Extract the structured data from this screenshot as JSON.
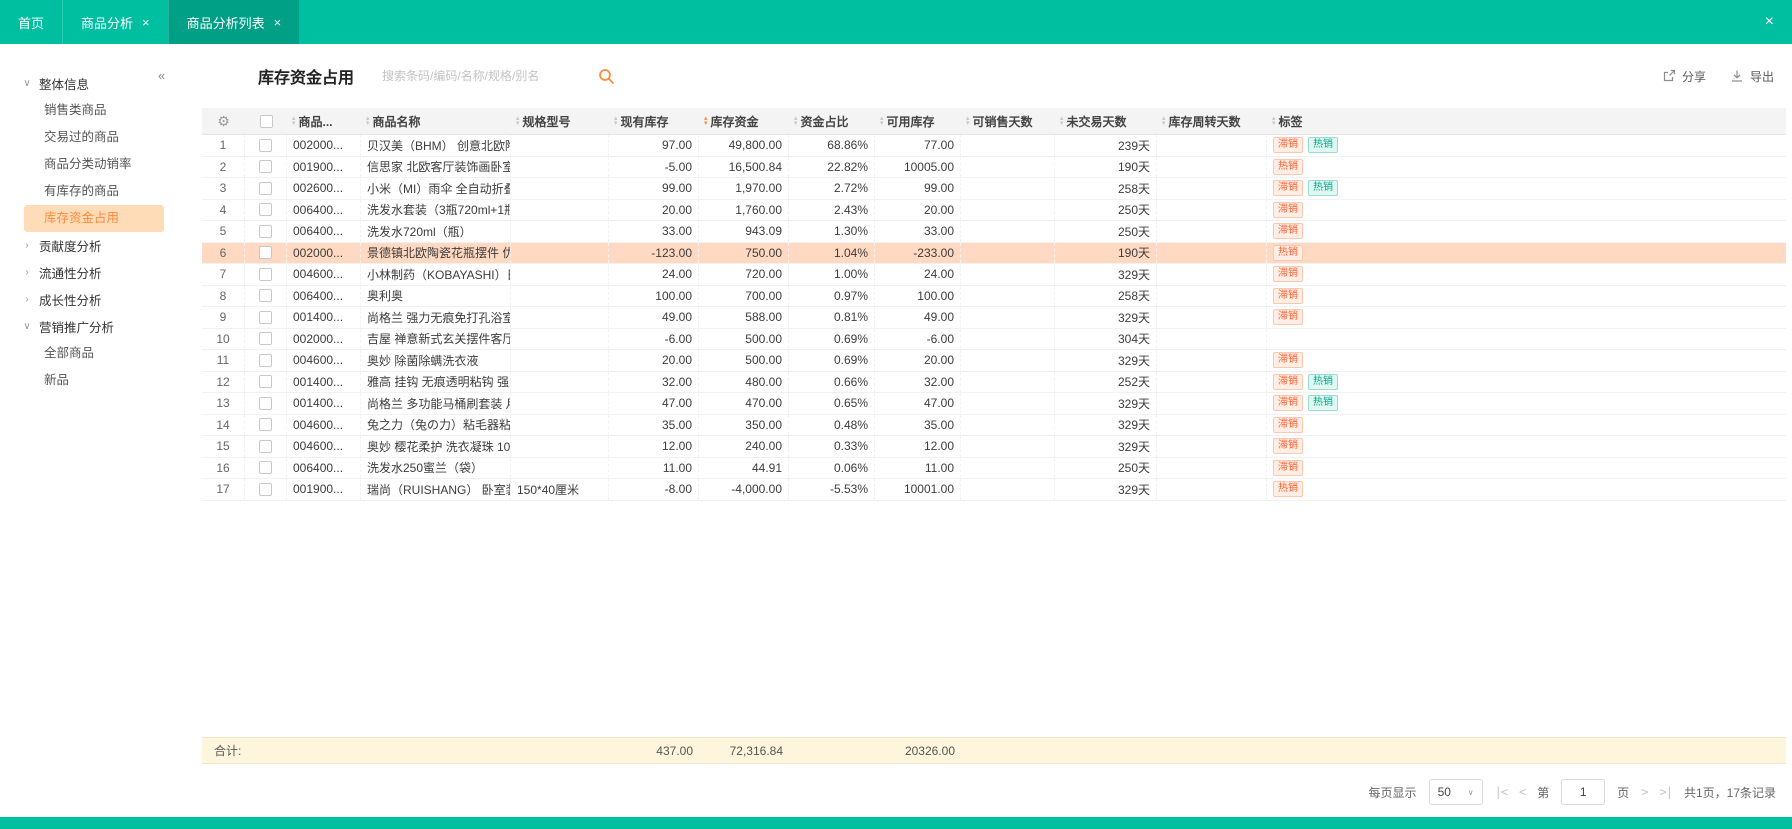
{
  "topbar": {
    "tabs": [
      {
        "label": "首页",
        "closable": false,
        "active": false
      },
      {
        "label": "商品分析",
        "closable": true,
        "active": false
      },
      {
        "label": "商品分析列表",
        "closable": true,
        "active": true
      }
    ],
    "close_icon": "×",
    "close_all_icon": "×"
  },
  "sidebar": {
    "collapse_icon": "«",
    "chevron_down_icon": "∨",
    "chevron_right_icon": "›",
    "groups": [
      {
        "label": "整体信息",
        "expanded": true,
        "selected": "库存资金占用",
        "children": [
          "销售类商品",
          "交易过的商品",
          "商品分类动销率",
          "有库存的商品",
          "库存资金占用"
        ]
      },
      {
        "label": "贡献度分析",
        "expanded": false,
        "selected": "",
        "children": []
      },
      {
        "label": "流通性分析",
        "expanded": false,
        "selected": "",
        "children": []
      },
      {
        "label": "成长性分析",
        "expanded": false,
        "selected": "",
        "children": []
      },
      {
        "label": "营销推广分析",
        "expanded": true,
        "selected": "",
        "children": [
          "全部商品",
          "新品"
        ]
      }
    ]
  },
  "toolbar": {
    "title": "库存资金占用",
    "search_placeholder": "搜索条码/编码/名称/规格/别名",
    "share_label": "分享",
    "export_label": "导出"
  },
  "table": {
    "settings_icon": "⚙",
    "sort_asc_icon": "▴",
    "sort_desc_icon": "▾",
    "columns": [
      {
        "label": "商品...",
        "key": "code",
        "sorted": false
      },
      {
        "label": "商品名称",
        "key": "name",
        "sorted": false
      },
      {
        "label": "规格型号",
        "key": "spec",
        "sorted": false
      },
      {
        "label": "现有库存",
        "key": "stock",
        "sorted": false
      },
      {
        "label": "库存资金",
        "key": "fund",
        "sorted": true
      },
      {
        "label": "资金占比",
        "key": "ratio",
        "sorted": false
      },
      {
        "label": "可用库存",
        "key": "available",
        "sorted": false
      },
      {
        "label": "可销售天数",
        "key": "sell_days",
        "sorted": false
      },
      {
        "label": "未交易天数",
        "key": "no_trade_days",
        "sorted": false
      },
      {
        "label": "库存周转天数",
        "key": "turnover_days",
        "sorted": false
      },
      {
        "label": "标签",
        "key": "tags",
        "sorted": false
      }
    ],
    "rows": [
      {
        "index": "1",
        "code": "002000...",
        "name": "贝汉美（BHM） 创意北欧陶",
        "spec": "",
        "stock": "97.00",
        "fund": "49,800.00",
        "ratio": "68.86%",
        "available": "77.00",
        "sell_days": "",
        "no_trade_days": "239天",
        "turnover_days": "",
        "highlighted": false,
        "tags": [
          {
            "label": "滞销",
            "color": "orange"
          },
          {
            "label": "热销",
            "color": "teal"
          }
        ]
      },
      {
        "index": "2",
        "code": "001900...",
        "name": "信思家 北欧客厅装饰画卧室",
        "spec": "",
        "stock": "-5.00",
        "fund": "16,500.84",
        "ratio": "22.82%",
        "available": "10005.00",
        "sell_days": "",
        "no_trade_days": "190天",
        "turnover_days": "",
        "highlighted": false,
        "tags": [
          {
            "label": "热销",
            "color": "orange"
          }
        ]
      },
      {
        "index": "3",
        "code": "002600...",
        "name": "小米（MI）雨伞 全自动折叠",
        "spec": "",
        "stock": "99.00",
        "fund": "1,970.00",
        "ratio": "2.72%",
        "available": "99.00",
        "sell_days": "",
        "no_trade_days": "258天",
        "turnover_days": "",
        "highlighted": false,
        "tags": [
          {
            "label": "滞销",
            "color": "orange"
          },
          {
            "label": "热销",
            "color": "teal"
          }
        ]
      },
      {
        "index": "4",
        "code": "006400...",
        "name": "洗发水套装（3瓶720ml+1瓶",
        "spec": "",
        "stock": "20.00",
        "fund": "1,760.00",
        "ratio": "2.43%",
        "available": "20.00",
        "sell_days": "",
        "no_trade_days": "250天",
        "turnover_days": "",
        "highlighted": false,
        "tags": [
          {
            "label": "滞销",
            "color": "orange"
          }
        ]
      },
      {
        "index": "5",
        "code": "006400...",
        "name": "洗发水720ml（瓶）",
        "spec": "",
        "stock": "33.00",
        "fund": "943.09",
        "ratio": "1.30%",
        "available": "33.00",
        "sell_days": "",
        "no_trade_days": "250天",
        "turnover_days": "",
        "highlighted": false,
        "tags": [
          {
            "label": "滞销",
            "color": "orange"
          }
        ]
      },
      {
        "index": "6",
        "code": "002000...",
        "name": "景德镇北欧陶瓷花瓶摆件 优",
        "spec": "",
        "stock": "-123.00",
        "fund": "750.00",
        "ratio": "1.04%",
        "available": "-233.00",
        "sell_days": "",
        "no_trade_days": "190天",
        "turnover_days": "",
        "highlighted": true,
        "tags": [
          {
            "label": "热销",
            "color": "orange"
          }
        ]
      },
      {
        "index": "7",
        "code": "004600...",
        "name": "小林制药（KOBAYASHI）日",
        "spec": "",
        "stock": "24.00",
        "fund": "720.00",
        "ratio": "1.00%",
        "available": "24.00",
        "sell_days": "",
        "no_trade_days": "329天",
        "turnover_days": "",
        "highlighted": false,
        "tags": [
          {
            "label": "滞销",
            "color": "orange"
          }
        ]
      },
      {
        "index": "8",
        "code": "006400...",
        "name": "奥利奥",
        "spec": "",
        "stock": "100.00",
        "fund": "700.00",
        "ratio": "0.97%",
        "available": "100.00",
        "sell_days": "",
        "no_trade_days": "258天",
        "turnover_days": "",
        "highlighted": false,
        "tags": [
          {
            "label": "滞销",
            "color": "orange"
          }
        ]
      },
      {
        "index": "9",
        "code": "001400...",
        "name": "尚格兰 强力无痕免打孔浴室",
        "spec": "",
        "stock": "49.00",
        "fund": "588.00",
        "ratio": "0.81%",
        "available": "49.00",
        "sell_days": "",
        "no_trade_days": "329天",
        "turnover_days": "",
        "highlighted": false,
        "tags": [
          {
            "label": "滞销",
            "color": "orange"
          }
        ]
      },
      {
        "index": "10",
        "code": "002000...",
        "name": "吉屋 禅意新式玄关摆件客厅",
        "spec": "",
        "stock": "-6.00",
        "fund": "500.00",
        "ratio": "0.69%",
        "available": "-6.00",
        "sell_days": "",
        "no_trade_days": "304天",
        "turnover_days": "",
        "highlighted": false,
        "tags": []
      },
      {
        "index": "11",
        "code": "004600...",
        "name": "奥妙 除菌除螨洗衣液",
        "spec": "",
        "stock": "20.00",
        "fund": "500.00",
        "ratio": "0.69%",
        "available": "20.00",
        "sell_days": "",
        "no_trade_days": "329天",
        "turnover_days": "",
        "highlighted": false,
        "tags": [
          {
            "label": "滞销",
            "color": "orange"
          }
        ]
      },
      {
        "index": "12",
        "code": "001400...",
        "name": "雅高 挂钩 无痕透明粘钩 强力",
        "spec": "",
        "stock": "32.00",
        "fund": "480.00",
        "ratio": "0.66%",
        "available": "32.00",
        "sell_days": "",
        "no_trade_days": "252天",
        "turnover_days": "",
        "highlighted": false,
        "tags": [
          {
            "label": "滞销",
            "color": "orange"
          },
          {
            "label": "热销",
            "color": "teal"
          }
        ]
      },
      {
        "index": "13",
        "code": "001400...",
        "name": "尚格兰 多功能马桶刷套装 月",
        "spec": "",
        "stock": "47.00",
        "fund": "470.00",
        "ratio": "0.65%",
        "available": "47.00",
        "sell_days": "",
        "no_trade_days": "329天",
        "turnover_days": "",
        "highlighted": false,
        "tags": [
          {
            "label": "滞销",
            "color": "orange"
          },
          {
            "label": "热销",
            "color": "teal"
          }
        ]
      },
      {
        "index": "14",
        "code": "004600...",
        "name": "兔之力（兔の力）粘毛器粘",
        "spec": "",
        "stock": "35.00",
        "fund": "350.00",
        "ratio": "0.48%",
        "available": "35.00",
        "sell_days": "",
        "no_trade_days": "329天",
        "turnover_days": "",
        "highlighted": false,
        "tags": [
          {
            "label": "滞销",
            "color": "orange"
          }
        ]
      },
      {
        "index": "15",
        "code": "004600...",
        "name": "奥妙 樱花柔护 洗衣凝珠 10",
        "spec": "",
        "stock": "12.00",
        "fund": "240.00",
        "ratio": "0.33%",
        "available": "12.00",
        "sell_days": "",
        "no_trade_days": "329天",
        "turnover_days": "",
        "highlighted": false,
        "tags": [
          {
            "label": "滞销",
            "color": "orange"
          }
        ]
      },
      {
        "index": "16",
        "code": "006400...",
        "name": "洗发水250蜜兰（袋）",
        "spec": "",
        "stock": "11.00",
        "fund": "44.91",
        "ratio": "0.06%",
        "available": "11.00",
        "sell_days": "",
        "no_trade_days": "250天",
        "turnover_days": "",
        "highlighted": false,
        "tags": [
          {
            "label": "滞销",
            "color": "orange"
          }
        ]
      },
      {
        "index": "17",
        "code": "001900...",
        "name": "瑞尚（RUISHANG） 卧室装",
        "spec": "150*40厘米",
        "stock": "-8.00",
        "fund": "-4,000.00",
        "ratio": "-5.53%",
        "available": "10001.00",
        "sell_days": "",
        "no_trade_days": "329天",
        "turnover_days": "",
        "highlighted": false,
        "tags": [
          {
            "label": "热销",
            "color": "orange"
          }
        ]
      }
    ]
  },
  "summary": {
    "label": "合计:",
    "stock": "437.00",
    "fund": "72,316.84",
    "available": "20326.00"
  },
  "pagination": {
    "page_size_label": "每页显示",
    "page_size": "50",
    "select_caret_icon": "∨",
    "first_icon": "|<",
    "prev_icon": "<",
    "page_prefix": "第",
    "current_page": "1",
    "page_suffix": "页",
    "next_icon": ">",
    "last_icon": ">|",
    "total_text": "共1页，17条记录"
  },
  "colors": {
    "teal": "#00bfa0",
    "orange": "#ff8a3c",
    "row_highlight": "#ffd9c2",
    "sidebar_selected_bg": "#ffdcb8",
    "summary_bg": "#fdf5dc"
  }
}
